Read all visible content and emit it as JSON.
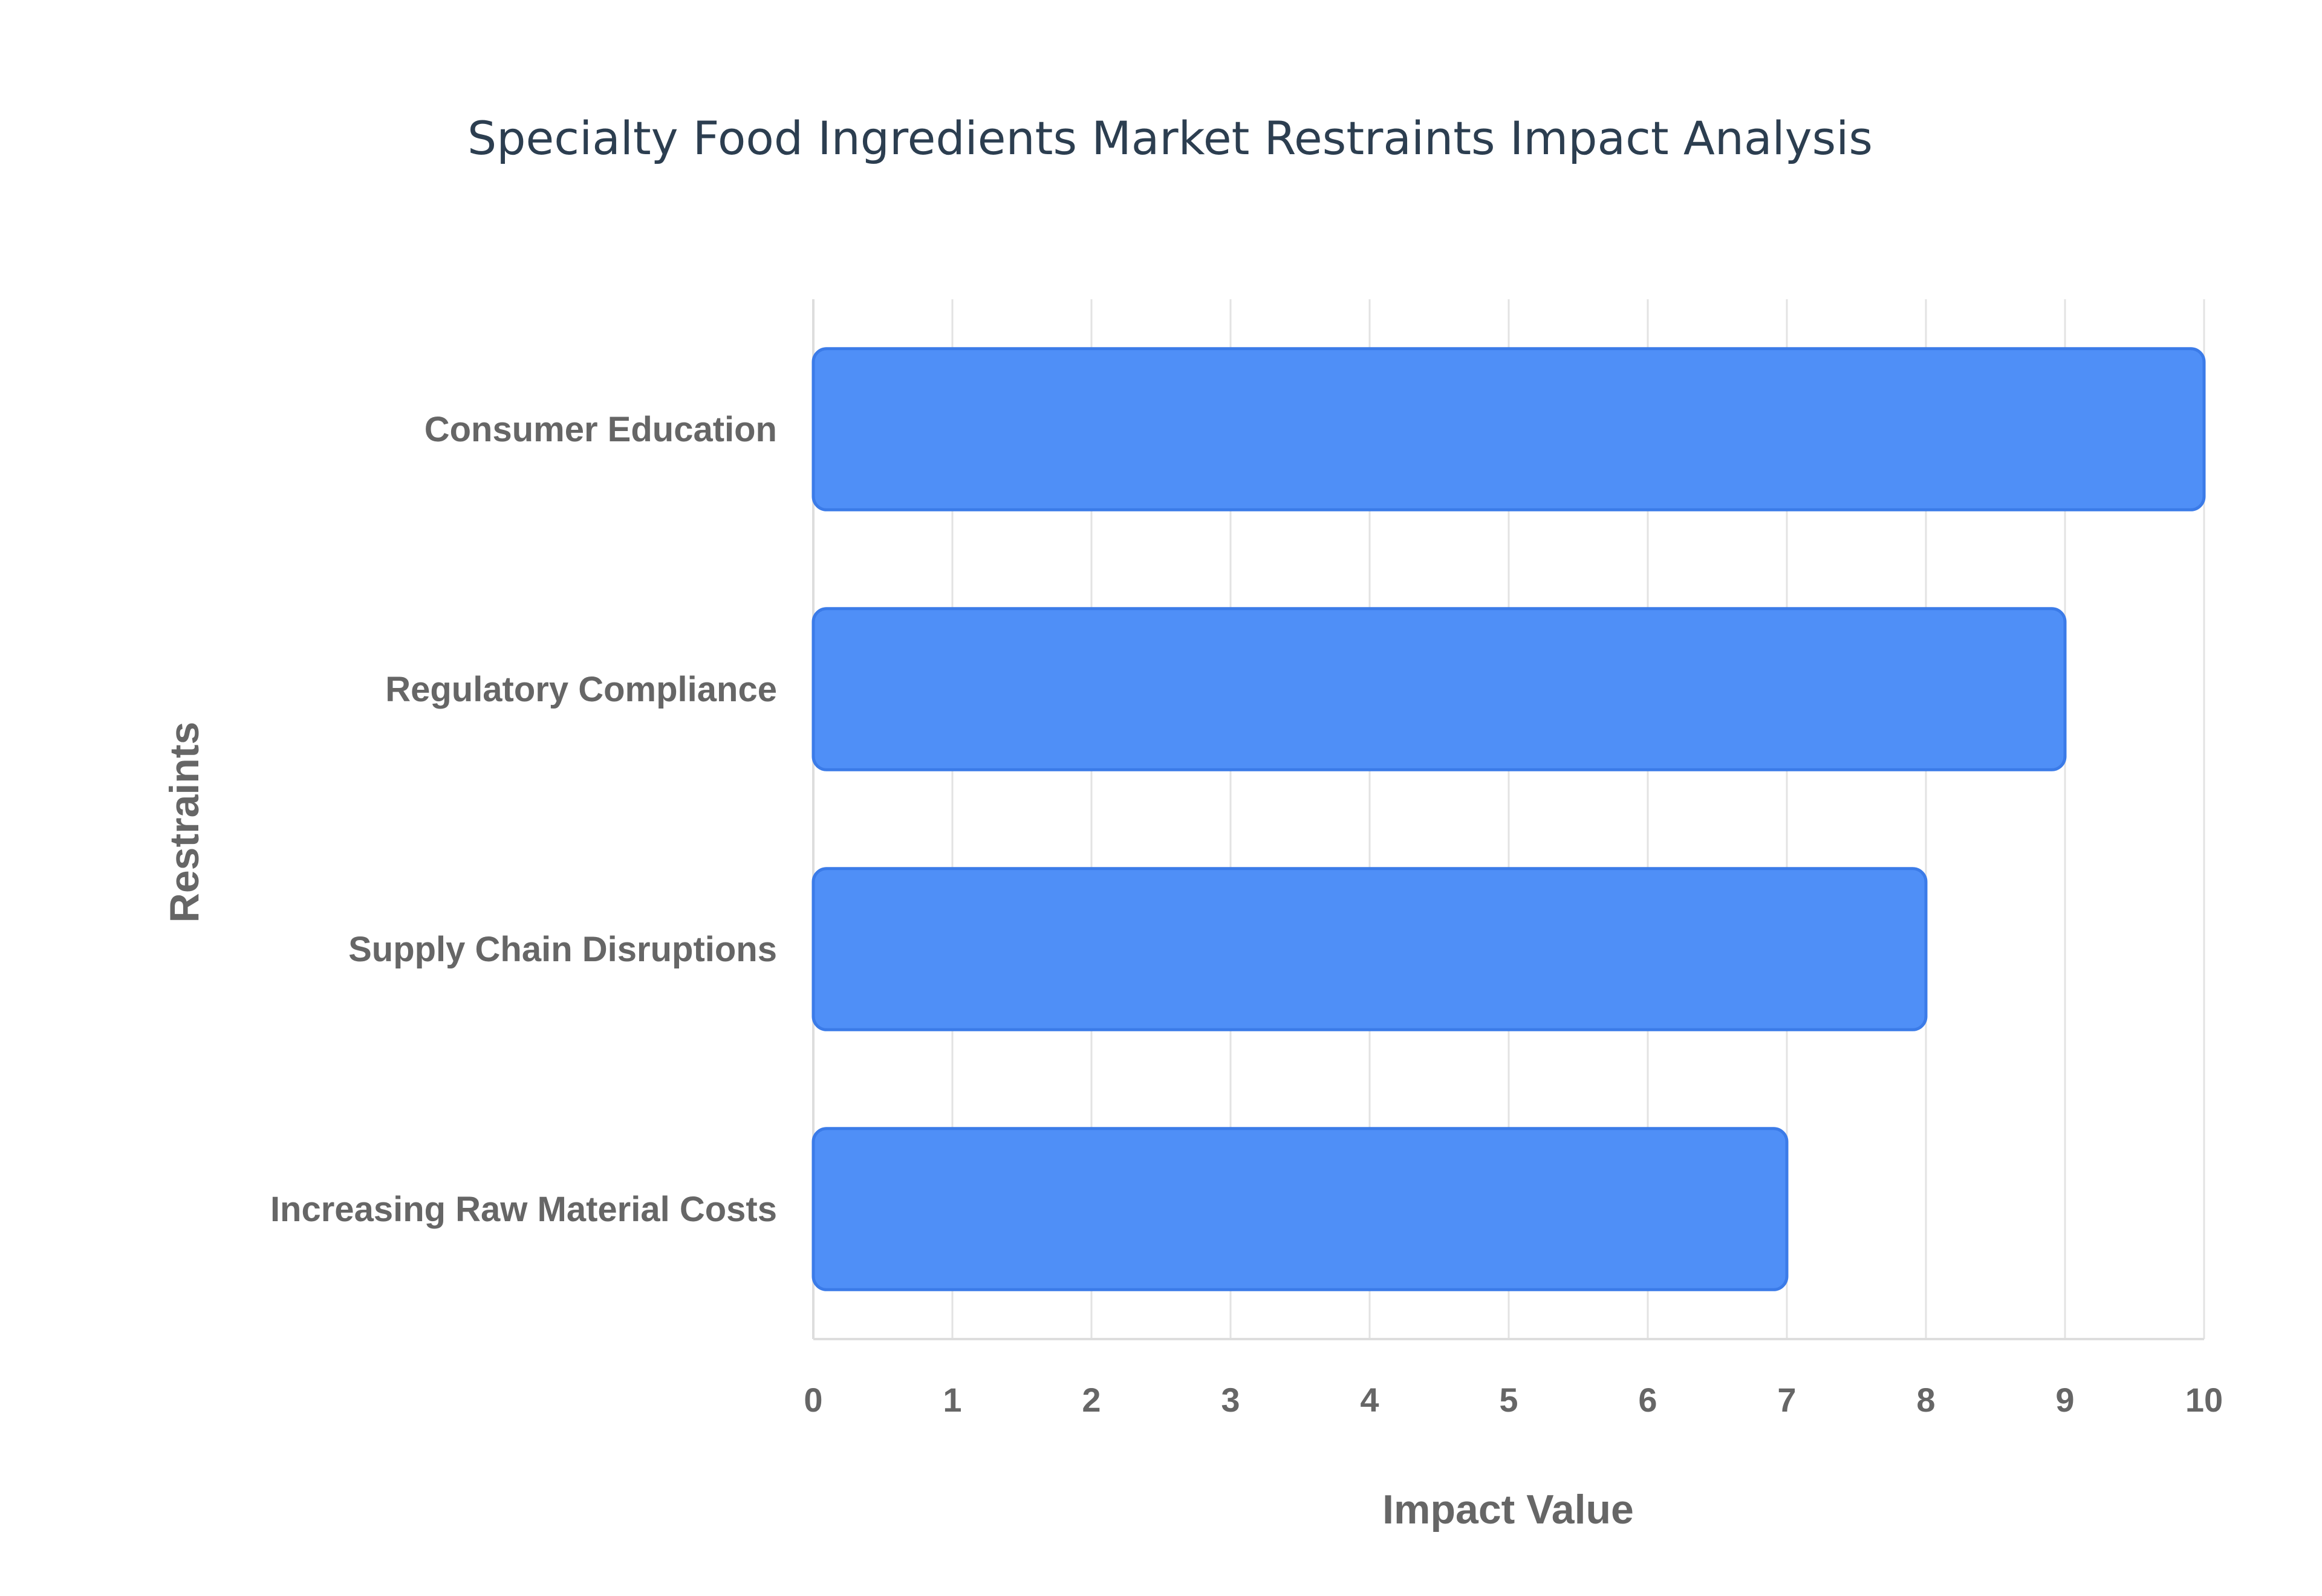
{
  "chart_data": {
    "type": "bar",
    "orientation": "horizontal",
    "title": "Specialty Food Ingredients Market Restraints Impact Analysis",
    "xlabel": "Impact Value",
    "ylabel": "Restraints",
    "categories": [
      "Consumer Education",
      "Regulatory Compliance",
      "Supply Chain Disruptions",
      "Increasing Raw Material Costs"
    ],
    "values": [
      10,
      9,
      8,
      7
    ],
    "xlim": [
      0,
      10
    ],
    "xticks": [
      "0",
      "1",
      "2",
      "3",
      "4",
      "5",
      "6",
      "7",
      "8",
      "9",
      "10"
    ],
    "grid": true,
    "legend": "none",
    "colors": {
      "bar_fill": "#4f8ff7",
      "bar_stroke": "#3b7be8"
    }
  }
}
